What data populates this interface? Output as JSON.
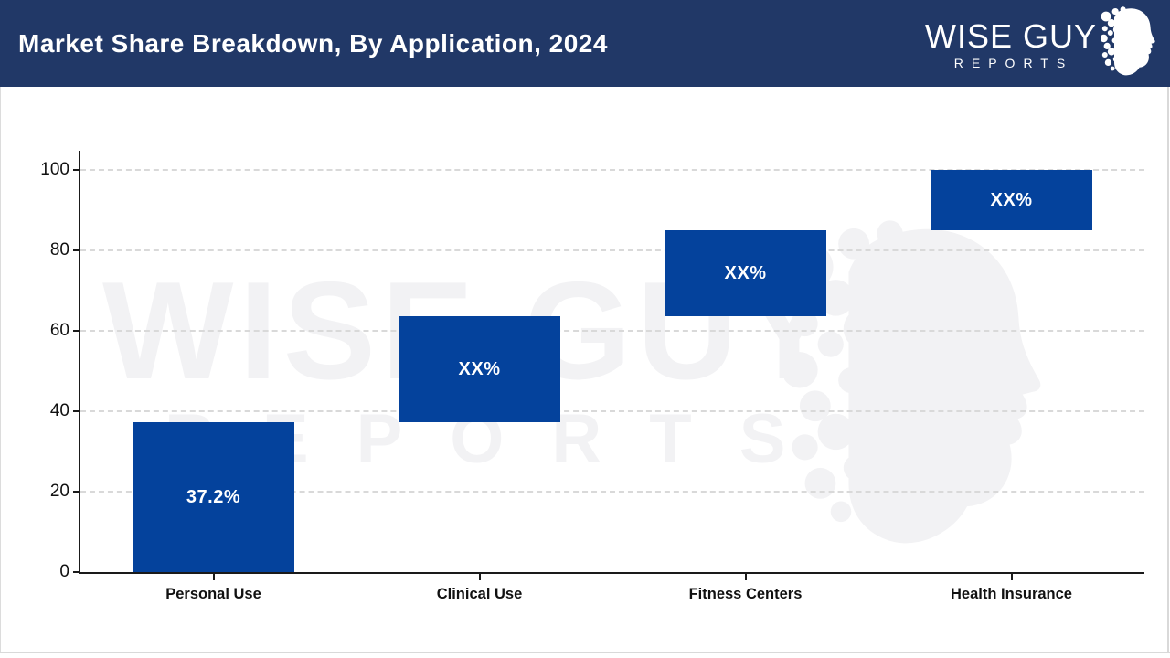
{
  "header": {
    "title": "Market Share Breakdown, By Application, 2024",
    "logo": {
      "line1": "WISE GUY",
      "line2": "REPORTS"
    }
  },
  "watermark": {
    "line1": "WISE GUY",
    "line2": "REPORTS"
  },
  "colors": {
    "header_bg": "#213867",
    "bar": "#04429c",
    "grid": "#d9d9d9",
    "axis": "#1a1a1a",
    "bar_label": "#ffffff",
    "watermark": "#f2f2f4"
  },
  "chart_data": {
    "type": "bar",
    "subtype": "floating-waterfall",
    "title": "Market Share Breakdown, By Application, 2024",
    "categories": [
      "Personal Use",
      "Clinical Use",
      "Fitness Centers",
      "Health Insurance"
    ],
    "segments": [
      {
        "category": "Personal Use",
        "start": 0,
        "end": 37.2,
        "label": "37.2%"
      },
      {
        "category": "Clinical Use",
        "start": 37.2,
        "end": 63.6,
        "label": "XX%"
      },
      {
        "category": "Fitness Centers",
        "start": 63.6,
        "end": 85,
        "label": "XX%"
      },
      {
        "category": "Health Insurance",
        "start": 85,
        "end": 100,
        "label": "XX%"
      }
    ],
    "ylim": [
      0,
      100
    ],
    "yticks": [
      0,
      20,
      40,
      60,
      80,
      100
    ],
    "xlabel": "",
    "ylabel": "",
    "grid": "horizontal-dashed",
    "legend": "none",
    "bar_color": "#04429c"
  }
}
